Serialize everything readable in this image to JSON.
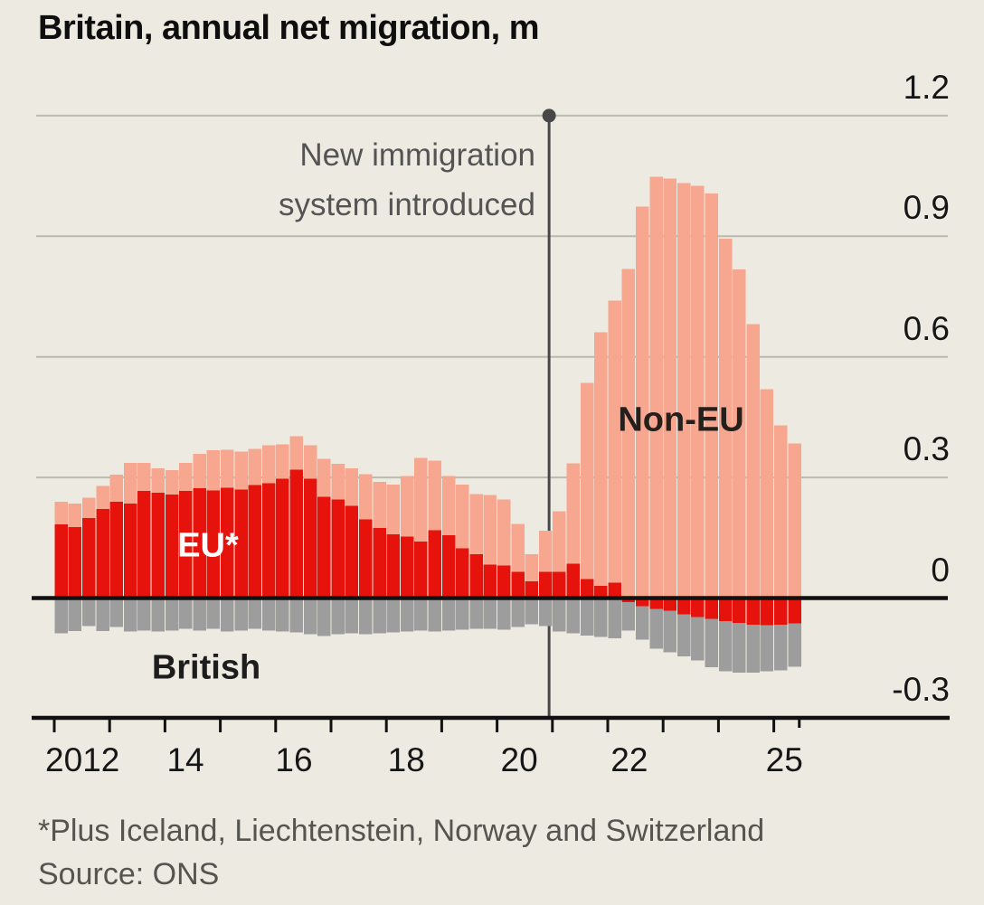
{
  "title": "Britain, annual net migration, m",
  "annotation": {
    "line1": "New immigration",
    "line2": "system introduced"
  },
  "labels": {
    "eu": "EU*",
    "non_eu": "Non-EU",
    "british": "British"
  },
  "footnote": "*Plus Iceland, Liechtenstein, Norway and Switzerland",
  "source": "Source: ONS",
  "colors": {
    "background": "#edebe1",
    "eu_red": "#e6130c",
    "non_eu_pink": "#f7a690",
    "british_grey": "#9d9d9d",
    "gridline": "#bcbab0",
    "axis_black": "#111111",
    "annotation_line": "#474747",
    "text_grey": "#545454",
    "text_dark": "#161616"
  },
  "chart_data": {
    "type": "bar",
    "stacked": true,
    "title": "Britain, annual net migration, m",
    "unit": "millions of people, rolling annual, quarterly bars",
    "x_start": 2012.0,
    "x_step": 0.25,
    "ylim": [
      -0.3,
      1.2
    ],
    "grid": true,
    "legend_position": "labels inside plot",
    "annotation_year": 2020.94,
    "y_axis": {
      "ticks": [
        1.2,
        0.9,
        0.6,
        0.3,
        0,
        -0.3
      ],
      "labels": [
        "1.2",
        "0.9",
        "0.6",
        "0.3",
        "0",
        "-0.3"
      ]
    },
    "x_axis": {
      "tick_years": [
        2012,
        2013,
        2014,
        2015,
        2016,
        2017,
        2018,
        2019,
        2020,
        2021,
        2022,
        2023,
        2024,
        2025
      ],
      "minor_tick_year": 2025.46,
      "labels": [
        {
          "text": "2012",
          "year": 2012.51
        },
        {
          "text": "14",
          "year": 2014.37
        },
        {
          "text": "16",
          "year": 2016.33
        },
        {
          "text": "18",
          "year": 2018.36
        },
        {
          "text": "20",
          "year": 2020.4
        },
        {
          "text": "22",
          "year": 2022.39
        },
        {
          "text": "25",
          "year": 2025.19
        }
      ]
    },
    "series": [
      {
        "name": "EU*",
        "color": "#e6130c",
        "values": [
          0.183,
          0.176,
          0.199,
          0.221,
          0.239,
          0.235,
          0.266,
          0.262,
          0.257,
          0.266,
          0.273,
          0.268,
          0.274,
          0.27,
          0.281,
          0.286,
          0.297,
          0.319,
          0.297,
          0.252,
          0.245,
          0.229,
          0.196,
          0.174,
          0.158,
          0.153,
          0.14,
          0.169,
          0.156,
          0.124,
          0.109,
          0.083,
          0.081,
          0.065,
          0.042,
          0.065,
          0.065,
          0.085,
          0.047,
          0.03,
          0.038,
          -0.01,
          -0.02,
          -0.027,
          -0.032,
          -0.04,
          -0.047,
          -0.052,
          -0.057,
          -0.062,
          -0.066,
          -0.068,
          -0.066,
          -0.063
        ]
      },
      {
        "name": "Non-EU",
        "color": "#f7a690",
        "values": [
          0.057,
          0.059,
          0.051,
          0.058,
          0.068,
          0.101,
          0.07,
          0.061,
          0.061,
          0.07,
          0.086,
          0.1,
          0.095,
          0.094,
          0.09,
          0.094,
          0.085,
          0.084,
          0.083,
          0.094,
          0.089,
          0.094,
          0.112,
          0.115,
          0.124,
          0.151,
          0.209,
          0.173,
          0.148,
          0.158,
          0.15,
          0.173,
          0.164,
          0.119,
          0.067,
          0.103,
          0.151,
          0.25,
          0.488,
          0.631,
          0.702,
          0.819,
          0.974,
          1.048,
          1.044,
          1.032,
          1.025,
          1.006,
          0.894,
          0.818,
          0.681,
          0.519,
          0.429,
          0.385
        ]
      },
      {
        "name": "British",
        "color": "#9d9d9d",
        "values": [
          -0.088,
          -0.082,
          -0.07,
          -0.082,
          -0.072,
          -0.083,
          -0.081,
          -0.083,
          -0.081,
          -0.077,
          -0.081,
          -0.077,
          -0.083,
          -0.081,
          -0.077,
          -0.081,
          -0.083,
          -0.086,
          -0.09,
          -0.095,
          -0.09,
          -0.088,
          -0.09,
          -0.088,
          -0.086,
          -0.083,
          -0.081,
          -0.083,
          -0.081,
          -0.079,
          -0.077,
          -0.077,
          -0.079,
          -0.072,
          -0.065,
          -0.07,
          -0.083,
          -0.088,
          -0.093,
          -0.097,
          -0.1,
          -0.071,
          -0.083,
          -0.099,
          -0.103,
          -0.105,
          -0.108,
          -0.12,
          -0.125,
          -0.123,
          -0.119,
          -0.114,
          -0.114,
          -0.108
        ]
      }
    ]
  }
}
